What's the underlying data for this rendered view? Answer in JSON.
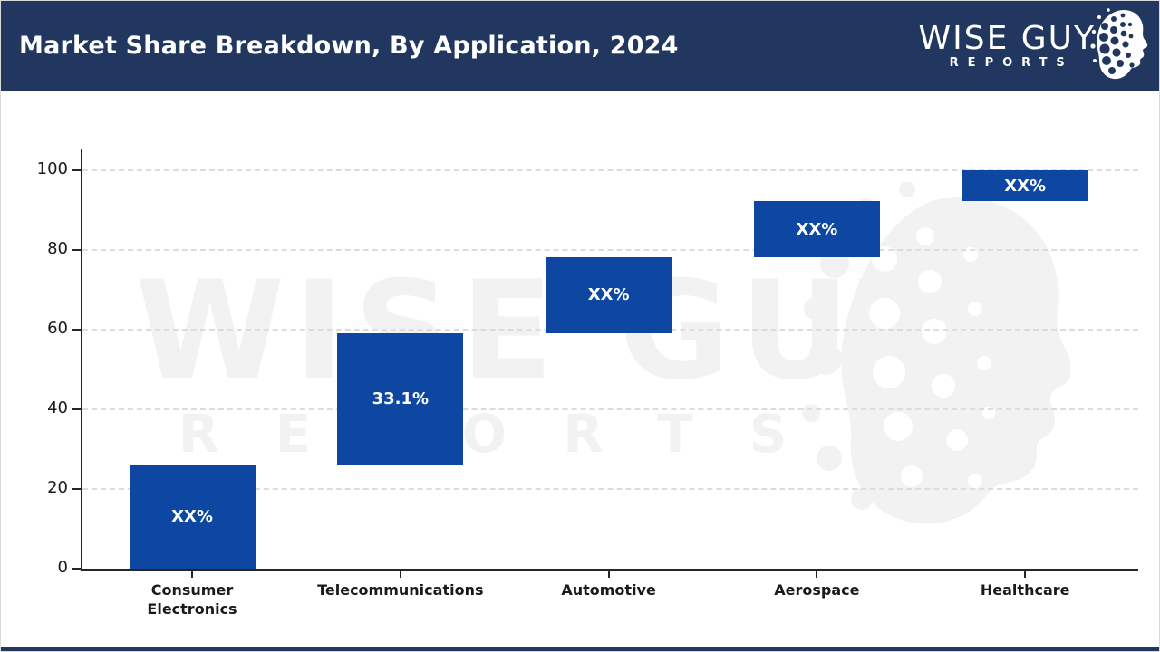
{
  "header": {
    "title": "Market Share Breakdown, By Application, 2024",
    "bg_color": "#213760",
    "logo": {
      "line1": "WISE GUY",
      "line2": "REPORTS"
    }
  },
  "watermark": {
    "line1": "WISE GUY",
    "line2": "REPORTS"
  },
  "chart_data": {
    "type": "bar",
    "subtype": "waterfall",
    "title": "Market Share Breakdown, By Application, 2024",
    "xlabel": "",
    "ylabel": "",
    "ylim": [
      0,
      100
    ],
    "yticks": [
      0,
      20,
      40,
      60,
      80,
      100
    ],
    "grid": "horizontal-dashed",
    "legend": "none",
    "bar_color": "#0d47a1",
    "bar_label_color": "#ffffff",
    "categories": [
      "Consumer\nElectronics",
      "Telecommunications",
      "Automotive",
      "Aerospace",
      "Healthcare"
    ],
    "segments": [
      {
        "category": "Consumer\nElectronics",
        "start": 0,
        "end": 26.1,
        "value": 26.1,
        "label": "XX%"
      },
      {
        "category": "Telecommunications",
        "start": 26.1,
        "end": 59.2,
        "value": 33.1,
        "label": "33.1%"
      },
      {
        "category": "Automotive",
        "start": 59.2,
        "end": 78.2,
        "value": 19.0,
        "label": "XX%"
      },
      {
        "category": "Aerospace",
        "start": 78.2,
        "end": 92.2,
        "value": 14.0,
        "label": "XX%"
      },
      {
        "category": "Healthcare",
        "start": 92.2,
        "end": 100,
        "value": 7.8,
        "label": "XX%"
      }
    ]
  },
  "footer": {
    "bg_color": "#213760"
  }
}
